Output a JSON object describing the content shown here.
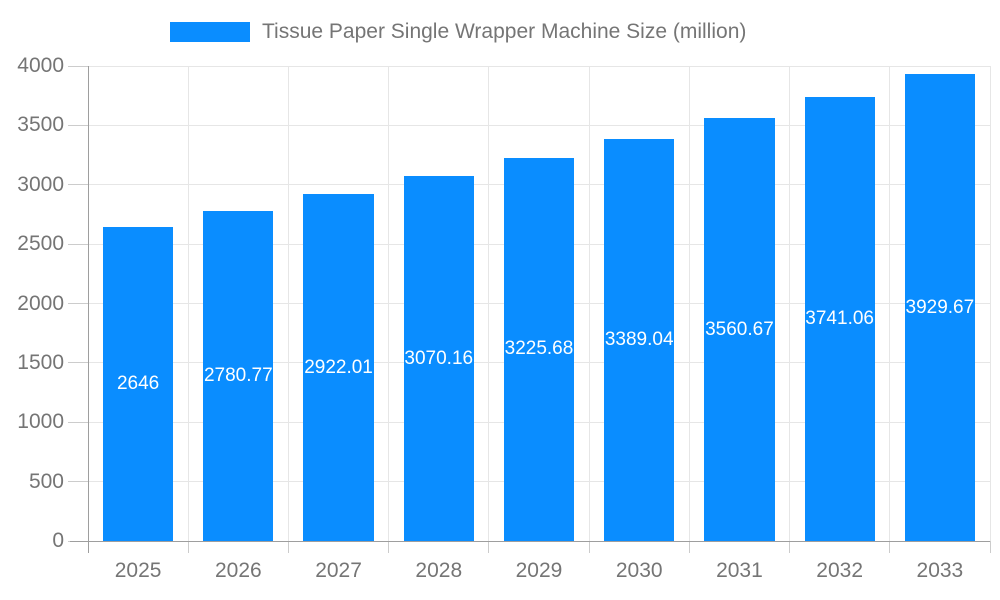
{
  "legend": {
    "label": "Tissue Paper Single Wrapper Machine Size (million)"
  },
  "chart_data": {
    "type": "bar",
    "title": "Tissue Paper Single Wrapper Machine Size (million)",
    "categories": [
      "2025",
      "2026",
      "2027",
      "2028",
      "2029",
      "2030",
      "2031",
      "2032",
      "2033"
    ],
    "values": [
      2646,
      2780.77,
      2922.01,
      3070.16,
      3225.68,
      3389.04,
      3560.67,
      3741.06,
      3929.67
    ],
    "value_labels": [
      "2646",
      "2780.77",
      "2922.01",
      "3070.16",
      "3225.68",
      "3389.04",
      "3560.67",
      "3741.06",
      "3929.67"
    ],
    "xlabel": "",
    "ylabel": "",
    "ylim": [
      0,
      4000
    ],
    "ytick_interval": 500,
    "yticks": [
      0,
      500,
      1000,
      1500,
      2000,
      2500,
      3000,
      3500,
      4000
    ],
    "grid": true,
    "legend_position": "top",
    "bar_color": "#0a8dff",
    "bar_label_color": "#ffffff",
    "axis_text_color": "#757575",
    "gridline_color": "#e6e6e6",
    "axis_line_color": "#9e9e9e"
  }
}
